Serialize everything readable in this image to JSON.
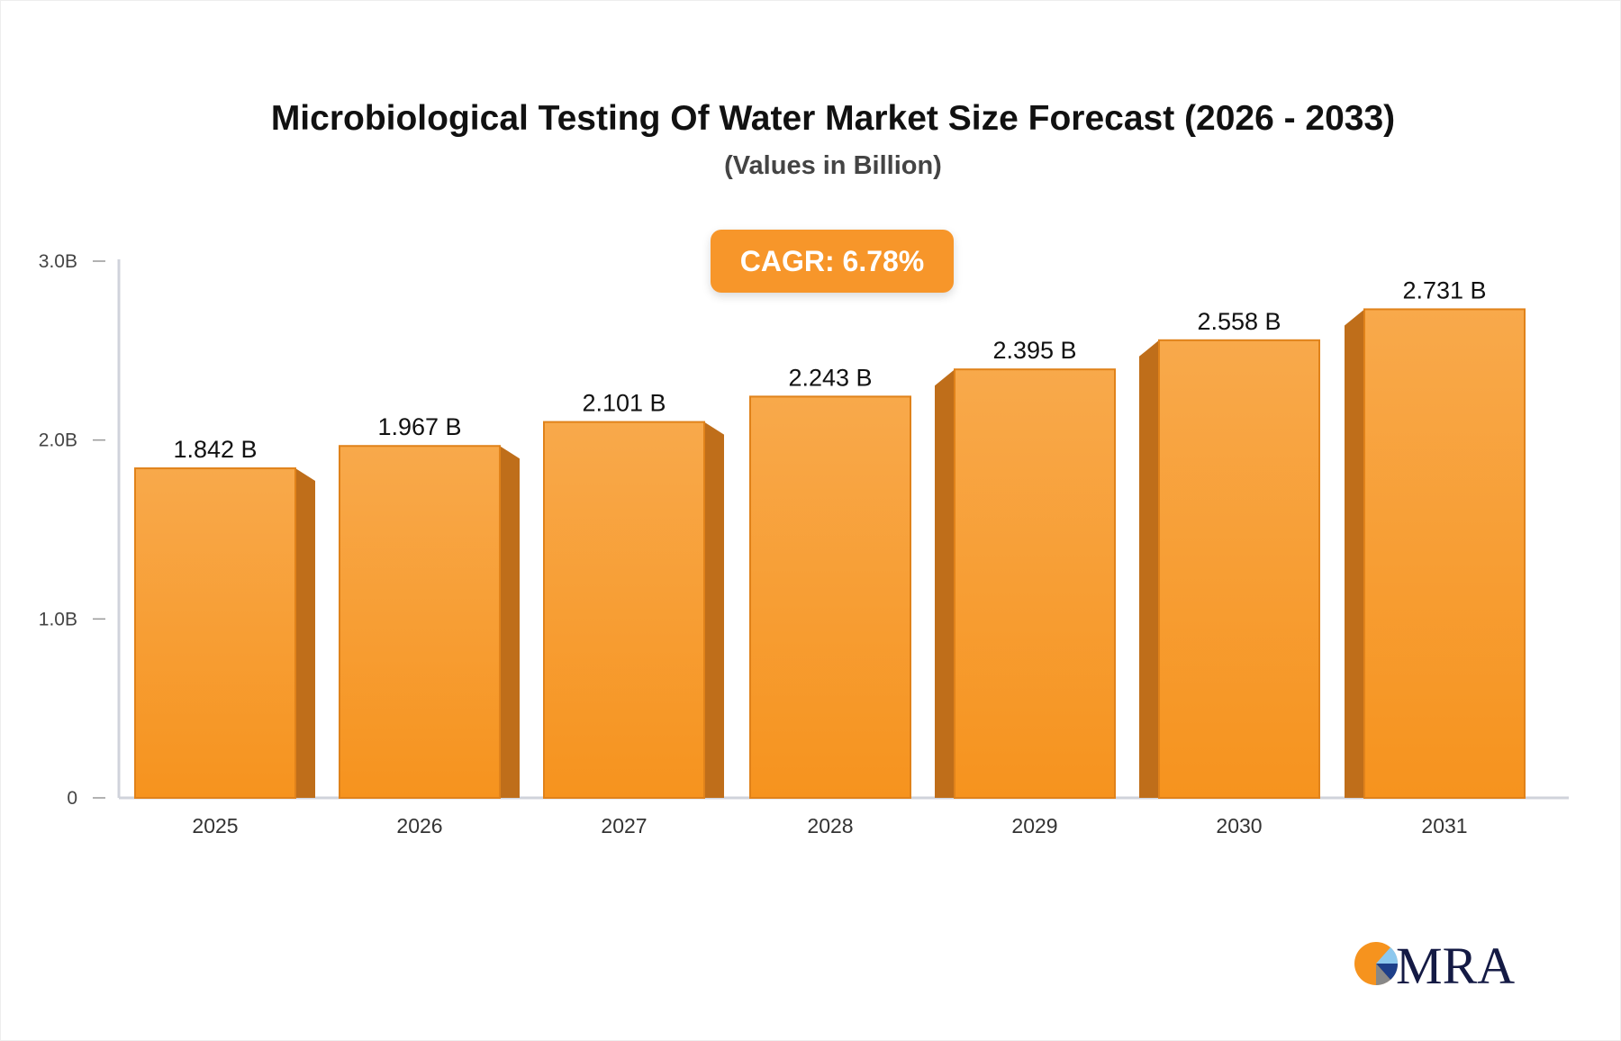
{
  "chart_data": {
    "type": "bar",
    "title": "Microbiological Testing Of Water Market Size Forecast (2026 - 2033)",
    "subtitle": "(Values in Billion)",
    "annotation": "CAGR: 6.78%",
    "categories": [
      "2025",
      "2026",
      "2027",
      "2028",
      "2029",
      "2030",
      "2031"
    ],
    "values": [
      1.842,
      1.967,
      2.101,
      2.243,
      2.395,
      2.558,
      2.731
    ],
    "data_labels": [
      "1.842 B",
      "1.967 B",
      "2.101 B",
      "2.243 B",
      "2.395 B",
      "2.558 B",
      "2.731 B"
    ],
    "ylim": [
      0,
      3
    ],
    "yticks": [
      0,
      1,
      2,
      3
    ],
    "ytick_labels": [
      "0",
      "1.0B",
      "2.0B",
      "3.0B"
    ],
    "xlabel": "",
    "ylabel": "",
    "grid": false,
    "colors": {
      "bar_top": "#f8a94b",
      "bar_bottom": "#f6931e",
      "bar_side": "#bf6e1a",
      "axis": "#d0d3db"
    }
  },
  "logo": {
    "text": "MRA"
  }
}
